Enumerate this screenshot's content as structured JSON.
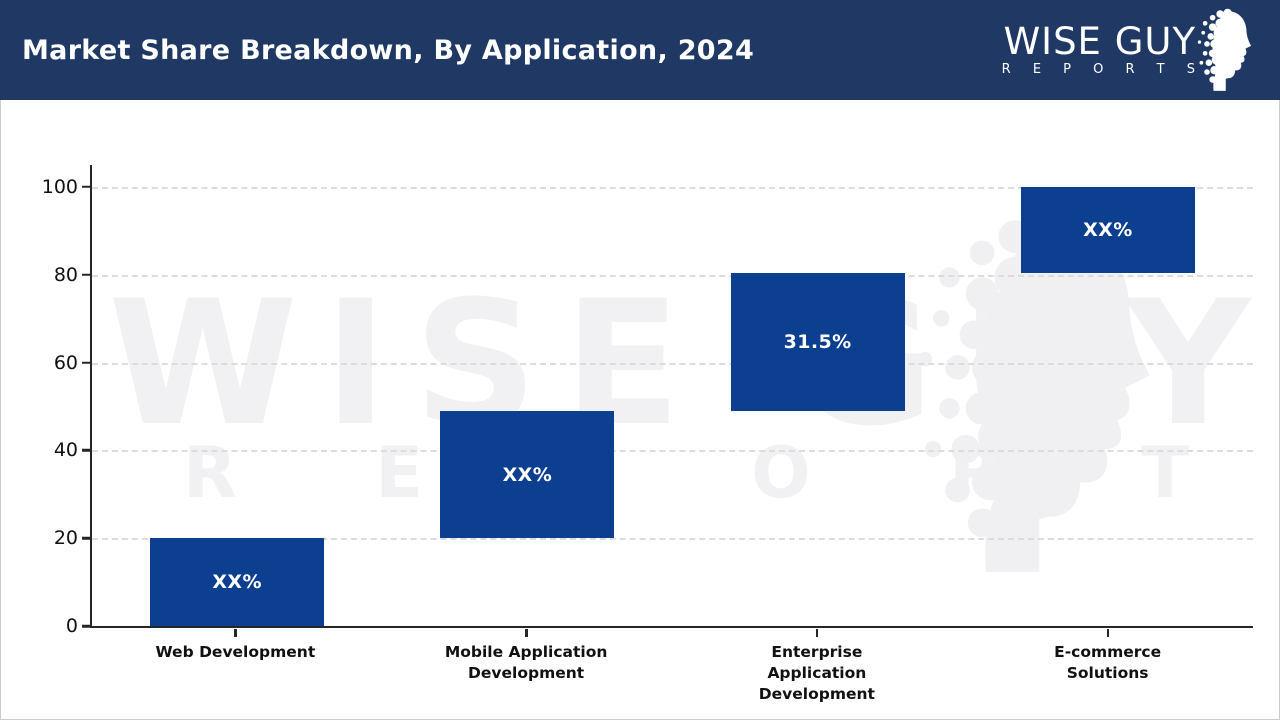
{
  "header": {
    "title": "Market Share Breakdown, By Application, 2024",
    "logo": {
      "line1": "WISE GUY",
      "line2": "R E P O R T S"
    }
  },
  "watermark": {
    "line1": "WISE GUY",
    "line2": "R E P O R T S"
  },
  "chart_data": {
    "type": "bar",
    "subtype": "waterfall",
    "title": "Market Share Breakdown, By Application, 2024",
    "categories": [
      "Web Development",
      "Mobile Application\nDevelopment",
      "Enterprise\nApplication\nDevelopment",
      "E-commerce\nSolutions"
    ],
    "segments": [
      {
        "category": "Web Development",
        "start": 0,
        "end": 20,
        "label": "XX%"
      },
      {
        "category": "Mobile Application Development",
        "start": 20,
        "end": 49,
        "label": "XX%"
      },
      {
        "category": "Enterprise Application Development",
        "start": 49,
        "end": 80.5,
        "label": "31.5%"
      },
      {
        "category": "E-commerce Solutions",
        "start": 80.5,
        "end": 100,
        "label": "XX%"
      }
    ],
    "yticks": [
      0,
      20,
      40,
      60,
      80,
      100
    ],
    "ylim": [
      0,
      105
    ],
    "xlabel": "",
    "ylabel": "",
    "grid": true,
    "gridline_style": "dashed",
    "legend": false,
    "bar_color": "#0c3f8f",
    "bar_label_color": "#ffffff",
    "header_color": "#1f3864"
  }
}
